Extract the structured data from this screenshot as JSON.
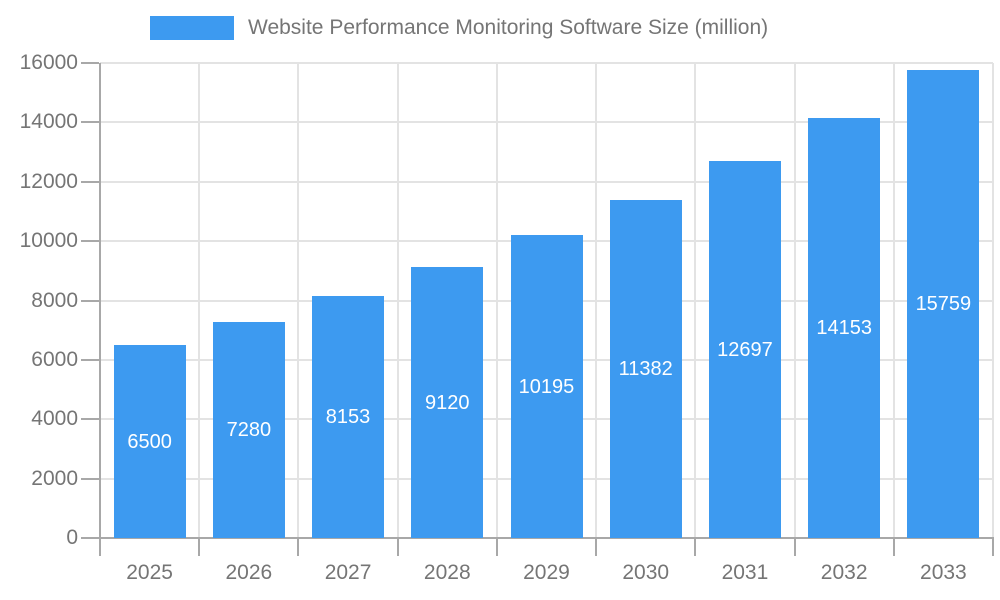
{
  "legend": {
    "label": "Website Performance Monitoring Software Size (million)"
  },
  "colors": {
    "bar": "#3D9AF0",
    "grid": "#E3E3E3",
    "axis": "#A8A8A8",
    "tick_label": "#757575",
    "value_label": "#FFFFFF"
  },
  "chart_data": {
    "type": "bar",
    "title": "Website Performance Monitoring Software Size (million)",
    "categories": [
      "2025",
      "2026",
      "2027",
      "2028",
      "2029",
      "2030",
      "2031",
      "2032",
      "2033"
    ],
    "values": [
      6500,
      7280,
      8153,
      9120,
      10195,
      11382,
      12697,
      14153,
      15759
    ],
    "xlabel": "",
    "ylabel": "",
    "ylim": [
      0,
      16000
    ],
    "yticks": [
      0,
      2000,
      4000,
      6000,
      8000,
      10000,
      12000,
      14000,
      16000
    ],
    "grid": true,
    "legend_position": "top",
    "value_labels": "inside-center"
  }
}
